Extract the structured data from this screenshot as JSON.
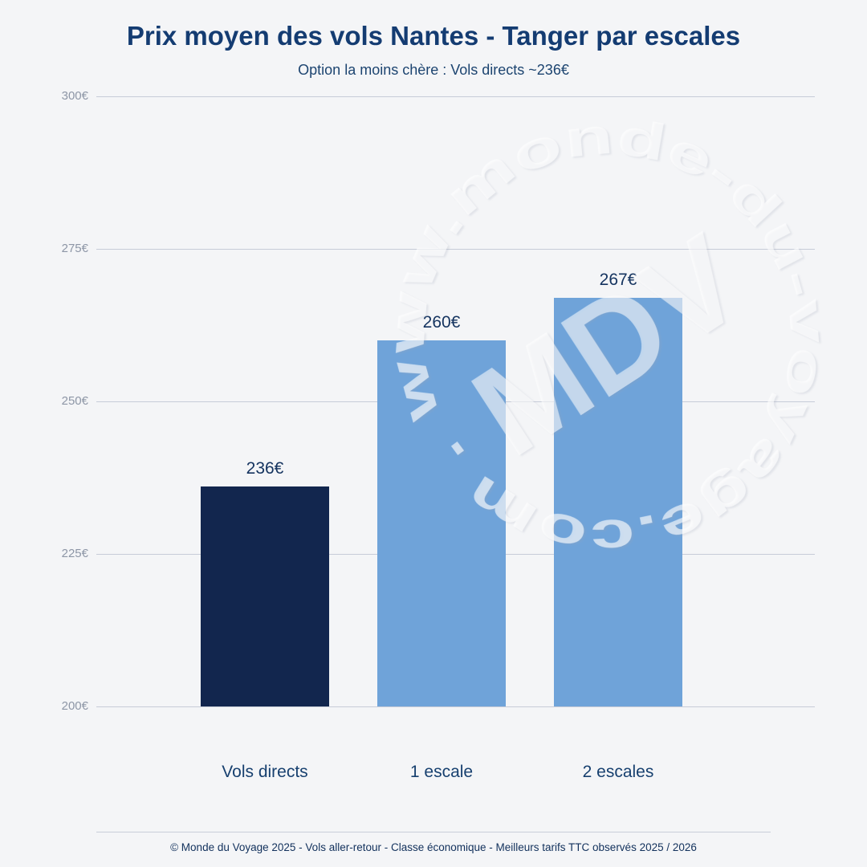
{
  "header": {
    "title": "Prix moyen des vols Nantes - Tanger par escales",
    "subtitle": "Option la moins chère : Vols directs ~236€"
  },
  "chart_data": {
    "type": "bar",
    "title": "Prix moyen des vols Nantes - Tanger par escales",
    "subtitle": "Option la moins chère : Vols directs ~236€",
    "categories": [
      "Vols directs",
      "1 escale",
      "2 escales"
    ],
    "values": [
      236,
      260,
      267
    ],
    "value_labels": [
      "236€",
      "260€",
      "267€"
    ],
    "xlabel": "",
    "ylabel": "",
    "ylim": [
      200,
      300
    ],
    "yticks": [
      200,
      225,
      250,
      275,
      300
    ],
    "ytick_labels": [
      "200€",
      "225€",
      "250€",
      "275€",
      "300€"
    ],
    "grid": true,
    "legend": "none",
    "bar_colors": [
      "#12264E",
      "#6FA3D9",
      "#6FA3D9"
    ]
  },
  "colors": {
    "background": "#F4F5F7",
    "title": "#143C72",
    "bar_dark": "#12264E",
    "bar_light": "#6FA3D9",
    "gridline": "#C7CCD8",
    "ytick_label": "#8D96A6",
    "text_navy": "#14335F"
  },
  "watermark": {
    "circle_text": "www.monde-du-voyage.com .",
    "center_text": "MDV"
  },
  "footer": {
    "text": "© Monde du Voyage 2025 - Vols aller-retour - Classe économique - Meilleurs tarifs TTC observés 2025 / 2026"
  }
}
